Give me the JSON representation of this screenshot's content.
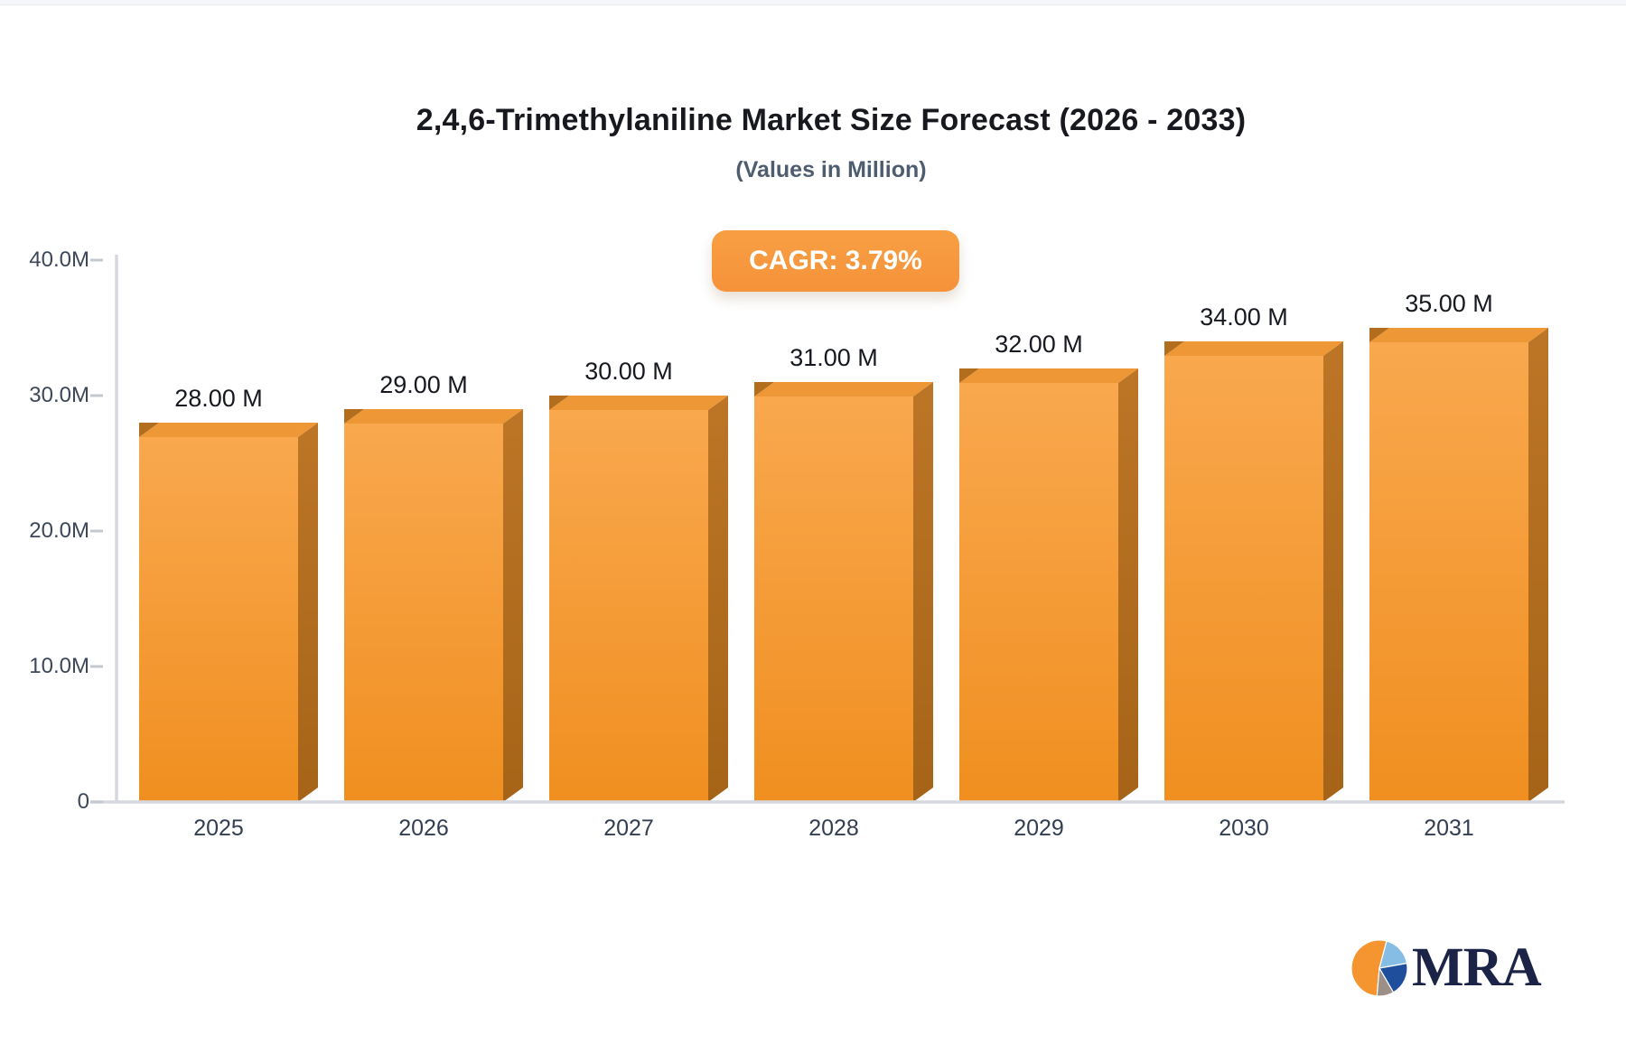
{
  "title": "2,4,6-Trimethylaniline Market Size Forecast (2026 - 2033)",
  "subtitle": "(Values in Million)",
  "badge": {
    "label": "CAGR: 3.79%",
    "color": "#f5923a",
    "text_color": "#ffffff"
  },
  "chart_data": {
    "type": "bar",
    "categories": [
      "2025",
      "2026",
      "2027",
      "2028",
      "2029",
      "2030",
      "2031"
    ],
    "values": [
      28,
      29,
      30,
      31,
      32,
      34,
      35
    ],
    "value_labels": [
      "28.00 M",
      "29.00 M",
      "30.00 M",
      "31.00 M",
      "32.00 M",
      "34.00 M",
      "35.00 M"
    ],
    "title": "2,4,6-Trimethylaniline Market Size Forecast (2026 - 2033)",
    "subtitle": "(Values in Million)",
    "xlabel": "",
    "ylabel": "",
    "unit": "Million",
    "ylim": [
      0,
      40
    ],
    "y_ticks": [
      {
        "label": "40.0M",
        "value": 40
      },
      {
        "label": "30.0M",
        "value": 30
      },
      {
        "label": "20.0M",
        "value": 20
      },
      {
        "label": "10.0M",
        "value": 10
      },
      {
        "label": "0",
        "value": 0
      }
    ],
    "grid": false,
    "legend": false,
    "colors": {
      "bar_front_top": "#f9a84e",
      "bar_front_bottom": "#f08f20",
      "bar_side_top": "#bd7526",
      "bar_side_bottom": "#a66418",
      "bar_top_face": "#ee9737",
      "bar_dark_wedge": "#b26d1d",
      "axis_line": "#d5d8de",
      "tick_dash": "#c4c8d0"
    }
  },
  "logo": {
    "text": "MRA",
    "text_color": "#1b2347",
    "pie_slices": [
      {
        "name": "orange-slice",
        "color": "#f5952f",
        "start": 185,
        "end": 375
      },
      {
        "name": "light-blue-slice",
        "color": "#85bde4",
        "start": 15,
        "end": 80
      },
      {
        "name": "dark-blue-slice",
        "color": "#1f4f9c",
        "start": 80,
        "end": 150
      },
      {
        "name": "gray-slice",
        "color": "#9b8f88",
        "start": 150,
        "end": 185
      }
    ]
  }
}
